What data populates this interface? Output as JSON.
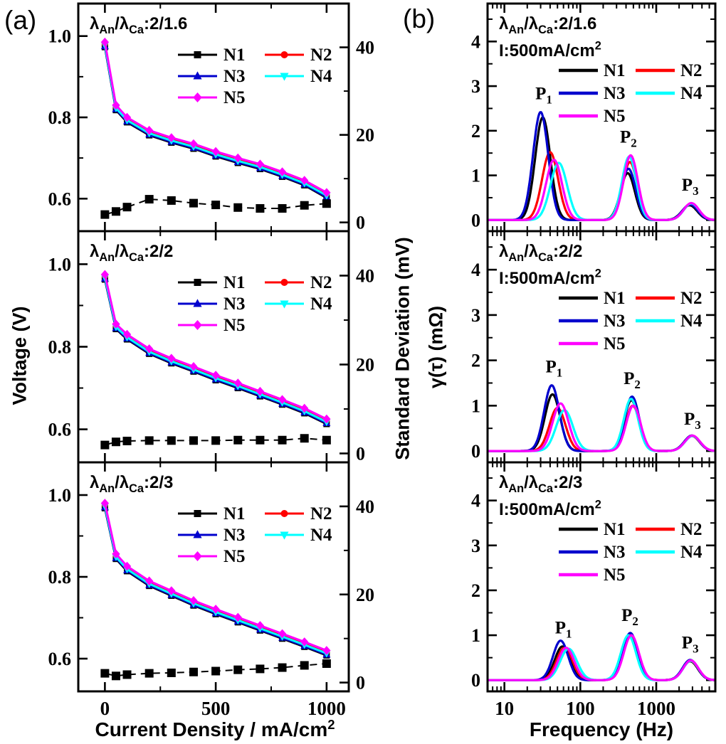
{
  "labels": {
    "a": "(a)",
    "b": "(b)"
  },
  "axis_titles": {
    "voltage": "Voltage (V)",
    "std_dev": "Standard Deviation (mV)",
    "gamma": "γ(τ) (mΩ)",
    "current_density": "Current Density / mA/cm^{2}",
    "frequency": "Frequency (Hz)"
  },
  "series": {
    "names": [
      "N1",
      "N2",
      "N3",
      "N4",
      "N5"
    ],
    "colors": {
      "N1": "#000000",
      "N2": "#ff0000",
      "N3": "#0000cd",
      "N4": "#00ffff",
      "N5": "#ff00ff"
    },
    "markers": {
      "N1": "square",
      "N2": "circle",
      "N3": "triangle-up",
      "N4": "triangle-down",
      "N5": "diamond"
    }
  },
  "chart_data": {
    "left_panels": [
      {
        "id": "a1",
        "type": "line",
        "title": "λ_{An}/λ_{Ca}:2/1.6",
        "xlabel": "Current Density / mA/cm^{2}",
        "ylabel": "Voltage (V)",
        "y2label": "Standard Deviation (mV)",
        "xlim": [
          -120,
          1100
        ],
        "xticks": [
          0,
          500,
          1000
        ],
        "xtick_labels": [
          "0",
          "500",
          "1000"
        ],
        "xminor": [
          250,
          750
        ],
        "ylim": [
          0.52,
          1.08
        ],
        "yticks": [
          0.6,
          0.8,
          1.0
        ],
        "ytick_labels": [
          "0.6",
          "0.8",
          "1.0"
        ],
        "yminor": [
          0.7,
          0.9
        ],
        "y2lim": [
          -2,
          50
        ],
        "y2ticks": [
          0,
          20,
          40
        ],
        "y2tick_labels": [
          "0",
          "20",
          "40"
        ],
        "y2minor": [
          10,
          30
        ],
        "x": [
          0,
          50,
          100,
          200,
          300,
          400,
          500,
          600,
          700,
          800,
          900,
          1000
        ],
        "series": [
          {
            "name": "N1",
            "values": [
              0.973,
              0.818,
              0.788,
              0.756,
              0.738,
              0.723,
              0.704,
              0.688,
              0.673,
              0.654,
              0.633,
              0.602
            ]
          },
          {
            "name": "N2",
            "values": [
              0.981,
              0.826,
              0.796,
              0.764,
              0.746,
              0.731,
              0.712,
              0.696,
              0.681,
              0.662,
              0.641,
              0.611
            ]
          },
          {
            "name": "N3",
            "values": [
              0.975,
              0.82,
              0.79,
              0.758,
              0.74,
              0.725,
              0.706,
              0.69,
              0.675,
              0.656,
              0.635,
              0.604
            ]
          },
          {
            "name": "N4",
            "values": [
              0.978,
              0.823,
              0.793,
              0.761,
              0.743,
              0.728,
              0.709,
              0.693,
              0.678,
              0.659,
              0.638,
              0.608
            ]
          },
          {
            "name": "N5",
            "values": [
              0.985,
              0.83,
              0.8,
              0.768,
              0.75,
              0.735,
              0.716,
              0.7,
              0.685,
              0.666,
              0.645,
              0.615
            ]
          }
        ],
        "std_dev": {
          "name": "standard-deviation",
          "axis": "y2",
          "values": [
            1.8,
            2.5,
            3.5,
            5.3,
            5.0,
            4.4,
            4.0,
            3.4,
            3.2,
            3.2,
            3.9,
            4.3
          ]
        }
      },
      {
        "id": "a2",
        "type": "line",
        "title": "λ_{An}/λ_{Ca}:2/2",
        "xlabel": "Current Density / mA/cm^{2}",
        "ylabel": "Voltage (V)",
        "y2label": "Standard Deviation (mV)",
        "xlim": [
          -120,
          1100
        ],
        "xticks": [
          0,
          500,
          1000
        ],
        "xtick_labels": [
          "0",
          "500",
          "1000"
        ],
        "xminor": [
          250,
          750
        ],
        "ylim": [
          0.52,
          1.08
        ],
        "yticks": [
          0.6,
          0.8,
          1.0
        ],
        "ytick_labels": [
          "0.6",
          "0.8",
          "1.0"
        ],
        "yminor": [
          0.7,
          0.9
        ],
        "y2lim": [
          -2,
          50
        ],
        "y2ticks": [
          0,
          20,
          40
        ],
        "y2tick_labels": [
          "0",
          "20",
          "40"
        ],
        "y2minor": [
          10,
          30
        ],
        "x": [
          0,
          50,
          100,
          200,
          300,
          400,
          500,
          600,
          700,
          800,
          900,
          1000
        ],
        "series": [
          {
            "name": "N1",
            "values": [
              0.963,
              0.843,
              0.818,
              0.783,
              0.76,
              0.74,
              0.719,
              0.7,
              0.68,
              0.66,
              0.639,
              0.613
            ]
          },
          {
            "name": "N2",
            "values": [
              0.971,
              0.851,
              0.826,
              0.791,
              0.768,
              0.748,
              0.727,
              0.708,
              0.688,
              0.668,
              0.647,
              0.621
            ]
          },
          {
            "name": "N3",
            "values": [
              0.965,
              0.845,
              0.82,
              0.785,
              0.762,
              0.742,
              0.721,
              0.702,
              0.682,
              0.662,
              0.641,
              0.615
            ]
          },
          {
            "name": "N4",
            "values": [
              0.968,
              0.848,
              0.823,
              0.788,
              0.765,
              0.745,
              0.724,
              0.705,
              0.685,
              0.665,
              0.644,
              0.618
            ]
          },
          {
            "name": "N5",
            "values": [
              0.975,
              0.855,
              0.83,
              0.795,
              0.772,
              0.752,
              0.731,
              0.712,
              0.692,
              0.672,
              0.651,
              0.625
            ]
          }
        ],
        "std_dev": {
          "name": "standard-deviation",
          "axis": "y2",
          "values": [
            1.9,
            2.6,
            2.8,
            2.9,
            2.9,
            2.9,
            2.9,
            3.0,
            3.0,
            3.0,
            3.4,
            3.0
          ]
        }
      },
      {
        "id": "a3",
        "type": "line",
        "title": "λ_{An}/λ_{Ca}:2/3",
        "xlabel": "Current Density / mA/cm^{2}",
        "ylabel": "Voltage (V)",
        "y2label": "Standard Deviation (mV)",
        "xlim": [
          -120,
          1100
        ],
        "xticks": [
          0,
          500,
          1000
        ],
        "xtick_labels": [
          "0",
          "500",
          "1000"
        ],
        "xminor": [
          250,
          750
        ],
        "ylim": [
          0.52,
          1.08
        ],
        "yticks": [
          0.6,
          0.8,
          1.0
        ],
        "ytick_labels": [
          "0.6",
          "0.8",
          "1.0"
        ],
        "yminor": [
          0.7,
          0.9
        ],
        "y2lim": [
          -2,
          50
        ],
        "y2ticks": [
          0,
          20,
          40
        ],
        "y2tick_labels": [
          "0",
          "20",
          "40"
        ],
        "y2minor": [
          10,
          30
        ],
        "x": [
          0,
          50,
          100,
          200,
          300,
          400,
          500,
          600,
          700,
          800,
          900,
          1000
        ],
        "series": [
          {
            "name": "N1",
            "values": [
              0.968,
              0.844,
              0.814,
              0.778,
              0.754,
              0.73,
              0.709,
              0.689,
              0.669,
              0.649,
              0.629,
              0.608
            ]
          },
          {
            "name": "N2",
            "values": [
              0.976,
              0.852,
              0.822,
              0.786,
              0.762,
              0.738,
              0.717,
              0.697,
              0.677,
              0.657,
              0.637,
              0.616
            ]
          },
          {
            "name": "N3",
            "values": [
              0.97,
              0.846,
              0.816,
              0.78,
              0.756,
              0.732,
              0.711,
              0.691,
              0.671,
              0.651,
              0.631,
              0.61
            ]
          },
          {
            "name": "N4",
            "values": [
              0.973,
              0.849,
              0.819,
              0.783,
              0.759,
              0.735,
              0.714,
              0.694,
              0.674,
              0.654,
              0.634,
              0.613
            ]
          },
          {
            "name": "N5",
            "values": [
              0.98,
              0.856,
              0.826,
              0.79,
              0.766,
              0.742,
              0.721,
              0.701,
              0.681,
              0.661,
              0.641,
              0.62
            ]
          }
        ],
        "std_dev": {
          "name": "standard-deviation",
          "axis": "y2",
          "values": [
            2.1,
            1.5,
            1.8,
            2.1,
            2.2,
            2.4,
            2.6,
            2.9,
            3.1,
            3.4,
            3.9,
            4.3
          ]
        }
      }
    ],
    "right_panels": [
      {
        "id": "b1",
        "type": "line",
        "title": "λ_{An}/λ_{Ca}:2/1.6",
        "subtitle": "I:500mA/cm^{2}",
        "xlabel": "Frequency (Hz)",
        "ylabel": "γ(τ) (mΩ)",
        "xlog": true,
        "xlim": [
          6,
          6000
        ],
        "xticks": [
          10,
          100,
          1000
        ],
        "xtick_labels": [
          "10",
          "100",
          "1000"
        ],
        "ylim": [
          -0.25,
          4.85
        ],
        "yticks": [
          0,
          1,
          2,
          3,
          4
        ],
        "ytick_labels": [
          "0",
          "1",
          "2",
          "3",
          "4"
        ],
        "yminor_step": 0.5,
        "peak_labels": [
          {
            "text": "P_{1}",
            "x": 33,
            "y": 2.85
          },
          {
            "text": "P_{2}",
            "x": 430,
            "y": 1.88
          },
          {
            "text": "P_{3}",
            "x": 2800,
            "y": 0.8
          }
        ],
        "series": [
          {
            "name": "N1",
            "peaks": [
              [
                32,
                2.3,
                0.1
              ],
              [
                420,
                1.05,
                0.095
              ],
              [
                2750,
                0.33,
                0.1
              ]
            ]
          },
          {
            "name": "N2",
            "peaks": [
              [
                40,
                1.52,
                0.105
              ],
              [
                450,
                1.3,
                0.095
              ],
              [
                2850,
                0.36,
                0.1
              ]
            ]
          },
          {
            "name": "N3",
            "peaks": [
              [
                30,
                2.42,
                0.1
              ],
              [
                430,
                1.15,
                0.095
              ],
              [
                2800,
                0.35,
                0.1
              ]
            ]
          },
          {
            "name": "N4",
            "peaks": [
              [
                52,
                1.28,
                0.11
              ],
              [
                440,
                1.42,
                0.095
              ],
              [
                2900,
                0.37,
                0.1
              ]
            ]
          },
          {
            "name": "N5",
            "peaks": [
              [
                45,
                1.35,
                0.105
              ],
              [
                460,
                1.45,
                0.095
              ],
              [
                2900,
                0.38,
                0.1
              ]
            ]
          }
        ]
      },
      {
        "id": "b2",
        "type": "line",
        "title": "λ_{An}/λ_{Ca}:2/2",
        "subtitle": "I:500mA/cm^{2}",
        "xlabel": "Frequency (Hz)",
        "ylabel": "γ(τ) (mΩ)",
        "xlog": true,
        "xlim": [
          6,
          6000
        ],
        "xticks": [
          10,
          100,
          1000
        ],
        "xtick_labels": [
          "10",
          "100",
          "1000"
        ],
        "ylim": [
          -0.25,
          4.85
        ],
        "yticks": [
          0,
          1,
          2,
          3,
          4
        ],
        "ytick_labels": [
          "0",
          "1",
          "2",
          "3",
          "4"
        ],
        "yminor_step": 0.5,
        "peak_labels": [
          {
            "text": "P_{1}",
            "x": 45,
            "y": 1.88
          },
          {
            "text": "P_{2}",
            "x": 480,
            "y": 1.62
          },
          {
            "text": "P_{3}",
            "x": 3000,
            "y": 0.72
          }
        ],
        "series": [
          {
            "name": "N1",
            "peaks": [
              [
                43,
                1.25,
                0.1
              ],
              [
                470,
                1.12,
                0.095
              ],
              [
                2950,
                0.34,
                0.1
              ]
            ]
          },
          {
            "name": "N2",
            "peaks": [
              [
                50,
                0.95,
                0.105
              ],
              [
                490,
                1.0,
                0.095
              ],
              [
                2950,
                0.33,
                0.1
              ]
            ]
          },
          {
            "name": "N3",
            "peaks": [
              [
                42,
                1.45,
                0.1
              ],
              [
                480,
                1.2,
                0.095
              ],
              [
                2950,
                0.34,
                0.1
              ]
            ]
          },
          {
            "name": "N4",
            "peaks": [
              [
                62,
                0.9,
                0.11
              ],
              [
                465,
                1.15,
                0.095
              ],
              [
                3000,
                0.33,
                0.1
              ]
            ]
          },
          {
            "name": "N5",
            "peaks": [
              [
                55,
                1.05,
                0.105
              ],
              [
                500,
                1.0,
                0.095
              ],
              [
                3000,
                0.34,
                0.1
              ]
            ]
          }
        ]
      },
      {
        "id": "b3",
        "type": "line",
        "title": "λ_{An}/λ_{Ca}:2/3",
        "subtitle": "I:500mA/cm^{2}",
        "xlabel": "Frequency (Hz)",
        "ylabel": "γ(τ) (mΩ)",
        "xlog": true,
        "xlim": [
          6,
          6000
        ],
        "xticks": [
          10,
          100,
          1000
        ],
        "xtick_labels": [
          "10",
          "100",
          "1000"
        ],
        "ylim": [
          -0.25,
          4.85
        ],
        "yticks": [
          0,
          1,
          2,
          3,
          4
        ],
        "ytick_labels": [
          "0",
          "1",
          "2",
          "3",
          "4"
        ],
        "yminor_step": 0.5,
        "peak_labels": [
          {
            "text": "P_{1}",
            "x": 60,
            "y": 1.18
          },
          {
            "text": "P_{2}",
            "x": 450,
            "y": 1.46
          },
          {
            "text": "P_{3}",
            "x": 2800,
            "y": 0.85
          }
        ],
        "series": [
          {
            "name": "N1",
            "peaks": [
              [
                58,
                0.75,
                0.1
              ],
              [
                450,
                1.02,
                0.1
              ],
              [
                2800,
                0.42,
                0.1
              ]
            ]
          },
          {
            "name": "N2",
            "peaks": [
              [
                62,
                0.72,
                0.105
              ],
              [
                460,
                1.0,
                0.1
              ],
              [
                2820,
                0.43,
                0.1
              ]
            ]
          },
          {
            "name": "N3",
            "peaks": [
              [
                55,
                0.88,
                0.1
              ],
              [
                455,
                1.05,
                0.1
              ],
              [
                2800,
                0.45,
                0.1
              ]
            ]
          },
          {
            "name": "N4",
            "peaks": [
              [
                70,
                0.7,
                0.11
              ],
              [
                430,
                1.0,
                0.1
              ],
              [
                2850,
                0.43,
                0.1
              ]
            ]
          },
          {
            "name": "N5",
            "peaks": [
              [
                65,
                0.72,
                0.105
              ],
              [
                470,
                1.0,
                0.1
              ],
              [
                2850,
                0.44,
                0.1
              ]
            ]
          }
        ]
      }
    ]
  }
}
